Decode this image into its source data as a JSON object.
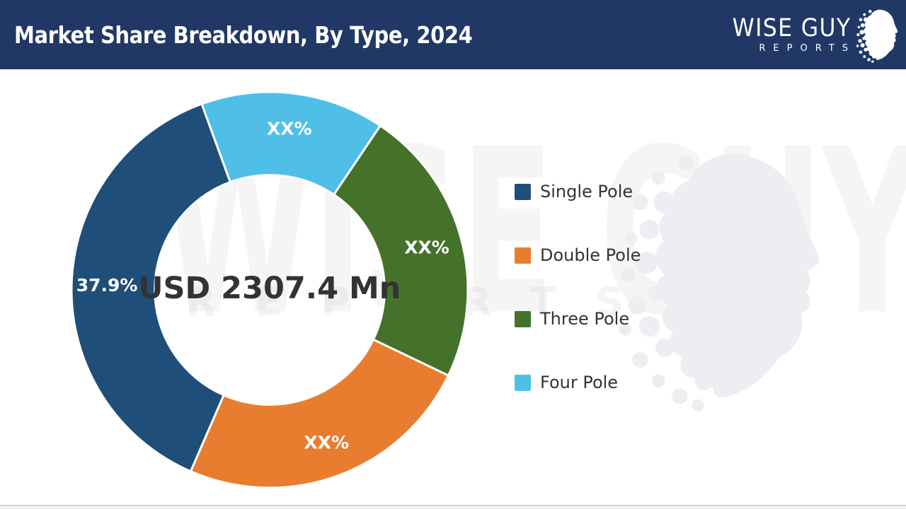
{
  "header": {
    "title": "Market Share Breakdown, By Type, 2024",
    "logo": {
      "name": "WISE GUY",
      "subname": "REPORTS"
    }
  },
  "watermark": {
    "line1": "WISE GUY",
    "line2": "REPORTS"
  },
  "chart_data": {
    "type": "pie",
    "subtype": "donut",
    "title": "Market Share Breakdown, By Type, 2024",
    "center_label": "USD 2307.4 Mn",
    "legend_position": "right",
    "start_angle_deg": 113.5,
    "direction": "clockwise",
    "draw_order": [
      0,
      3,
      2,
      1
    ],
    "inner_radius_ratio": 0.58,
    "segments": [
      {
        "label": "Single Pole",
        "percent": 37.9,
        "display_label": "37.9%",
        "color": "#1F4E79"
      },
      {
        "label": "Double Pole",
        "percent": 24.4,
        "display_label": "XX%",
        "color": "#E87D2F"
      },
      {
        "label": "Three Pole",
        "percent": 22.7,
        "display_label": "XX%",
        "color": "#45722B"
      },
      {
        "label": "Four Pole",
        "percent": 15.0,
        "display_label": "XX%",
        "color": "#4FBFE8"
      }
    ]
  },
  "colors": {
    "header_bg": "#213866",
    "text_dark": "#333333",
    "label_on_slice": "#FFFFFF"
  }
}
